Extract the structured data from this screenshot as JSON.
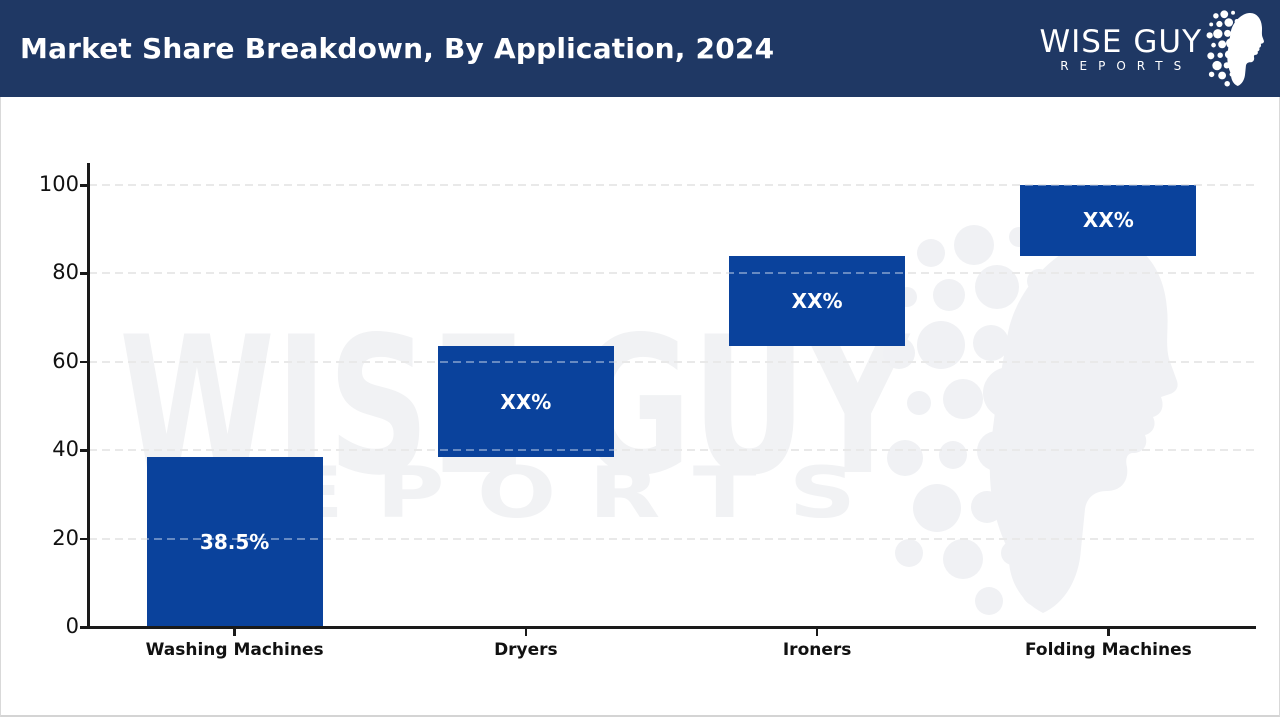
{
  "header": {
    "title": "Market Share Breakdown, By Application, 2024",
    "brand": {
      "line1": "WISE GUY",
      "line2": "REPORTS"
    }
  },
  "watermark": {
    "line1": "WISE GUY",
    "line2": "REPORTS"
  },
  "chart_data": {
    "type": "waterfall",
    "title": "Market Share Breakdown, By Application, 2024",
    "categories": [
      "Washing Machines",
      "Dryers",
      "Ironers",
      "Folding Machines"
    ],
    "segments": [
      {
        "category": "Washing Machines",
        "start": 0,
        "end": 38.5,
        "label": "38.5%"
      },
      {
        "category": "Dryers",
        "start": 38.5,
        "end": 63.5,
        "label": "XX%"
      },
      {
        "category": "Ironers",
        "start": 63.5,
        "end": 84,
        "label": "XX%"
      },
      {
        "category": "Folding Machines",
        "start": 84,
        "end": 100,
        "label": "XX%"
      }
    ],
    "ylim": [
      0,
      100
    ],
    "yticks": [
      0,
      20,
      40,
      60,
      80,
      100
    ],
    "xlabel": "",
    "ylabel": "",
    "grid": "horizontal-dashed",
    "legend": "none",
    "colors": {
      "bar": "#0a429c",
      "bar_label": "#ffffff",
      "header_bg": "#1f3864",
      "grid": "#dcdcdc",
      "axis": "#1a1a1a",
      "watermark": "#f0f1f4"
    }
  }
}
